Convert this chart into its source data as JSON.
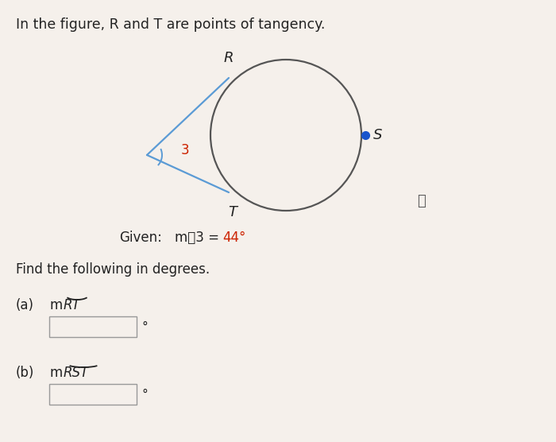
{
  "background_color": "#f5f0eb",
  "title_text": "In the figure, R and T are points of tangency.",
  "title_fontsize": 12.5,
  "find_text": "Find the following in degrees.",
  "angle_label": "3",
  "angle_label_color": "#cc2200",
  "line_color": "#5b9bd5",
  "line_width": 1.6,
  "circle_edge_color": "#555555",
  "circle_linewidth": 1.6,
  "point_color": "#1a55cc",
  "point_size": 7,
  "text_color": "#222222",
  "given_value_color": "#cc2200",
  "box_facecolor": "#f5f0eb",
  "box_edgecolor": "#999999",
  "info_icon_color": "#555555"
}
